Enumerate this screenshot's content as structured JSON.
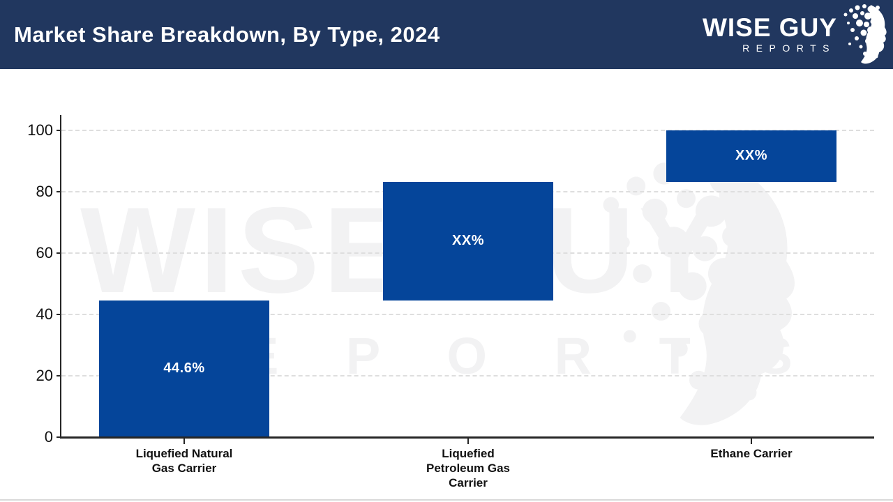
{
  "header": {
    "title": "Market Share Breakdown, By Type, 2024",
    "logo": {
      "line1": "WISE GUY",
      "line2": "REPORTS"
    }
  },
  "watermark": {
    "line1": "WISE GUY",
    "line2": "REPORTS"
  },
  "colors": {
    "header_bg": "#21375F",
    "bar_fill": "#05459A",
    "bar_label_text": "#FFFFFF",
    "grid": "#DEDEDE",
    "axis": "#262626",
    "tick_text": "#111111",
    "watermark": "#F2F2F3"
  },
  "chart_data": {
    "type": "bar",
    "variant": "floating-waterfall",
    "title": "Market Share Breakdown, By Type, 2024",
    "categories": [
      [
        "Liquefied Natural",
        "Gas Carrier"
      ],
      [
        "Liquefied",
        "Petroleum Gas",
        "Carrier"
      ],
      [
        "Ethane Carrier"
      ]
    ],
    "bars": [
      {
        "category": "Liquefied Natural Gas Carrier",
        "start": 0,
        "end": 44.6,
        "label": "44.6%"
      },
      {
        "category": "Liquefied Petroleum Gas Carrier",
        "start": 44.6,
        "end": 83.2,
        "label": "XX%"
      },
      {
        "category": "Ethane Carrier",
        "start": 83.2,
        "end": 100,
        "label": "XX%"
      }
    ],
    "ylim": [
      0,
      100
    ],
    "yticks": [
      0,
      20,
      40,
      60,
      80,
      100
    ],
    "grid": true,
    "legend": false
  }
}
